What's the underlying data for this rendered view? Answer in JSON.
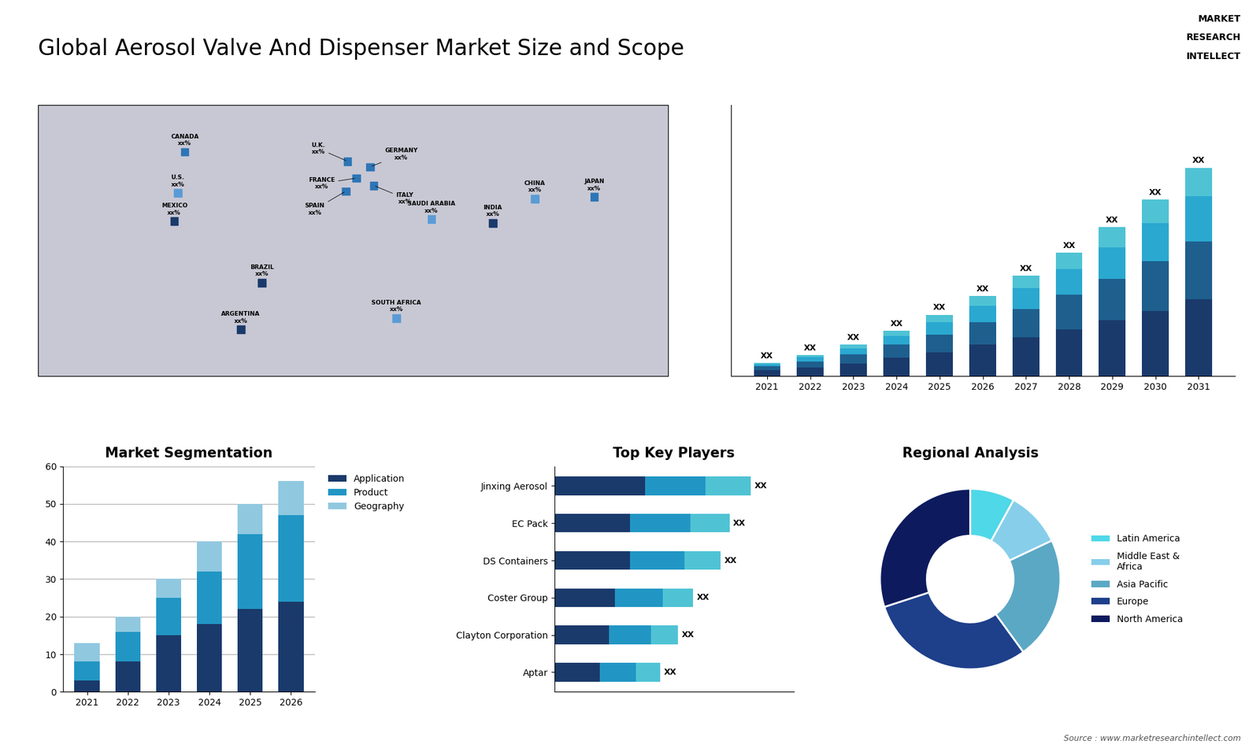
{
  "title": "Global Aerosol Valve And Dispenser Market Size and Scope",
  "annotations": [
    "MARKET",
    "RESEARCH",
    "INTELLECT",
    "Source : www.marketresearchintellect.com"
  ],
  "chart_data": [
    {
      "type": "scatter",
      "color": "#c8c8d4",
      "x": [
        -96,
        -100,
        -102,
        -52,
        -64,
        -3,
        2,
        10,
        -4,
        12,
        45,
        25,
        104,
        138,
        80
      ],
      "values": [
        60,
        38,
        23,
        -10,
        -35,
        55,
        46,
        52,
        39,
        42,
        24,
        -29,
        35,
        36,
        22
      ],
      "colors": [
        "#2e75b6",
        "#5b9bd5",
        "#1a3a6b",
        "#1a3a6b",
        "#1a3a6b",
        "#2e75b6",
        "#2e75b6",
        "#2e75b6",
        "#2e75b6",
        "#2e75b6",
        "#5b9bd5",
        "#5b9bd5",
        "#5b9bd5",
        "#2e75b6",
        "#1a3a6b"
      ],
      "value_labels": [
        "CANADA\nxx%",
        "U.S.\nxx%",
        "MEXICO\nxx%",
        "BRAZIL\nxx%",
        "ARGENTINA\nxx%",
        "U.K.\nxx%",
        "FRANCE\nxx%",
        "GERMANY\nxx%",
        "SPAIN\nxx%",
        "ITALY\nxx%",
        "SAUDI ARABIA\nxx%",
        "SOUTH AFRICA\nxx%",
        "CHINA\nxx%",
        "JAPAN\nxx%",
        "INDIA\nxx%"
      ],
      "xlim": [
        -180,
        180
      ],
      "ylim": [
        -60,
        85
      ],
      "tick_labels": false
    },
    {
      "type": "bar",
      "stacked": true,
      "categories": [
        "2021",
        "2022",
        "2023",
        "2024",
        "2025",
        "2026",
        "2027",
        "2028",
        "2029",
        "2030",
        "2031"
      ],
      "series": [
        {
          "color": "#1a3a6b",
          "values": [
            1.0,
            1.5,
            2.2,
            3.2,
            4.2,
            5.5,
            6.8,
            8.2,
            9.8,
            11.5,
            13.5
          ]
        },
        {
          "color": "#1e5f8e",
          "values": [
            0.7,
            1.1,
            1.6,
            2.3,
            3.1,
            4.0,
            5.0,
            6.1,
            7.3,
            8.7,
            10.2
          ]
        },
        {
          "color": "#2aa8d0",
          "values": [
            0.4,
            0.7,
            1.1,
            1.6,
            2.2,
            2.9,
            3.7,
            4.6,
            5.6,
            6.7,
            8.0
          ]
        },
        {
          "color": "#4fc3d4",
          "values": [
            0.2,
            0.4,
            0.6,
            0.9,
            1.3,
            1.7,
            2.2,
            2.8,
            3.5,
            4.2,
            5.0
          ]
        }
      ],
      "value_labels": [
        "XX",
        "XX",
        "XX",
        "XX",
        "XX",
        "XX",
        "XX",
        "XX",
        "XX",
        "XX",
        "XX"
      ],
      "ylim": [
        0,
        47.71
      ],
      "tick_labels": "x"
    },
    {
      "type": "bar",
      "stacked": true,
      "title": "Market Segmentation",
      "categories": [
        "2021",
        "2022",
        "2023",
        "2024",
        "2025",
        "2026"
      ],
      "series": [
        {
          "name": "Application",
          "color": "#1a3a6b",
          "values": [
            3,
            8,
            15,
            18,
            22,
            24
          ]
        },
        {
          "name": "Product",
          "color": "#2196c4",
          "values": [
            5,
            8,
            10,
            14,
            20,
            23
          ]
        },
        {
          "name": "Geography",
          "color": "#90c8e0",
          "values": [
            5,
            4,
            5,
            8,
            8,
            9
          ]
        }
      ],
      "ylim": [
        0,
        60
      ],
      "yticks": [
        0,
        10,
        20,
        30,
        40,
        50,
        60
      ],
      "grid": true,
      "legend": "upper left"
    },
    {
      "type": "bar",
      "stacked": true,
      "orientation": "horizontal",
      "title": "Top Key Players",
      "categories": [
        "Jinxing Aerosol",
        "EC Pack",
        "DS Containers",
        "Coster Group",
        "Clayton Corporation",
        "Aptar"
      ],
      "series": [
        {
          "color": "#1a3a6b",
          "values": [
            3.0,
            2.5,
            2.5,
            2.0,
            1.8,
            1.5
          ]
        },
        {
          "color": "#2196c4",
          "values": [
            2.0,
            2.0,
            1.8,
            1.6,
            1.4,
            1.2
          ]
        },
        {
          "color": "#4fc3d4",
          "values": [
            1.5,
            1.3,
            1.2,
            1.0,
            0.9,
            0.8
          ]
        }
      ],
      "value_labels": [
        "XX",
        "XX",
        "XX",
        "XX",
        "XX",
        "XX"
      ],
      "xlim": [
        0,
        7.93
      ],
      "tick_labels": "y"
    },
    {
      "type": "pie",
      "title": "Regional Analysis",
      "categories": [
        "Latin America",
        "Middle East &\nAfrica",
        "Asia Pacific",
        "Europe",
        "North America"
      ],
      "values": [
        8,
        10,
        22,
        30,
        30
      ],
      "colors": [
        "#4fd8e8",
        "#87ceeb",
        "#5ba8c4",
        "#1e3f8a",
        "#0d1b5e"
      ],
      "legend": "center left"
    }
  ]
}
